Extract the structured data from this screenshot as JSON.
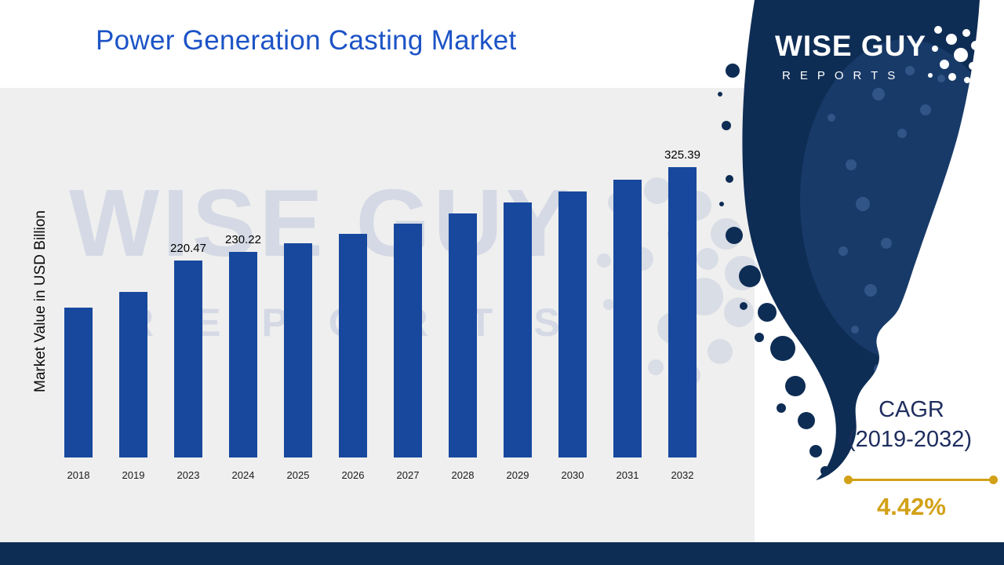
{
  "title": "Power Generation Casting Market",
  "y_axis_label": "Market Value in USD Billion",
  "logo": {
    "line1": "WISE GUY",
    "line2": "REPORTS"
  },
  "watermark": {
    "line1": "WISE GUY",
    "line2": "REPORTS"
  },
  "cagr": {
    "label": "CAGR",
    "range": "(2019-2032)",
    "value": "4.42%"
  },
  "colors": {
    "title_blue": "#1c53c6",
    "bar_blue": "#17489d",
    "navy": "#0e2d55",
    "gold": "#d2a117",
    "cagr_text": "#1e2d5e",
    "chart_bg": "#efefef",
    "watermark": "#d4d9e5"
  },
  "chart_data": {
    "type": "bar",
    "title": "Power Generation Casting Market",
    "xlabel": "",
    "ylabel": "Market Value in USD Billion",
    "categories": [
      "2018",
      "2019",
      "2023",
      "2024",
      "2025",
      "2026",
      "2027",
      "2028",
      "2029",
      "2030",
      "2031",
      "2032"
    ],
    "values": [
      168.2,
      185.4,
      220.47,
      230.22,
      240.4,
      251.0,
      262.1,
      273.7,
      285.8,
      298.4,
      311.6,
      325.39
    ],
    "value_labels": {
      "2023": "220.47",
      "2024": "230.22",
      "2032": "325.39"
    },
    "ylim": [
      0,
      350
    ],
    "grid": false,
    "legend": "none",
    "bar_color": "#17489d",
    "cagr_note": "4.42% (2019-2032)"
  }
}
